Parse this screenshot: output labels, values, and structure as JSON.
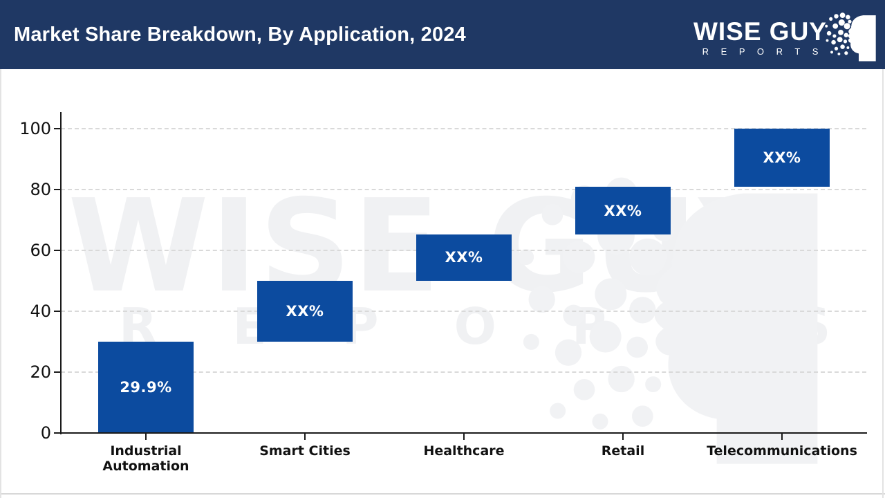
{
  "header": {
    "title": "Market Share Breakdown, By Application, 2024",
    "bg_color": "#1f3864",
    "logo": {
      "name": "WISE GUY",
      "tagline": "R E P O R T S"
    }
  },
  "watermark": {
    "line1": "WISE GUY",
    "line2": "R E P O R T S"
  },
  "chart_data": {
    "type": "bar",
    "subtype": "waterfall",
    "title": "Market Share Breakdown, By Application, 2024",
    "xlabel": "",
    "ylabel": "",
    "ylim": [
      0,
      100
    ],
    "yticks": [
      0,
      20,
      40,
      60,
      80,
      100
    ],
    "grid": {
      "axis": "y",
      "style": "dashed",
      "color": "#d9d9d9"
    },
    "legend": "none",
    "bar_color": "#0c4b9f",
    "bar_label_color": "#ffffff",
    "categories": [
      "Industrial\nAutomation",
      "Smart Cities",
      "Healthcare",
      "Retail",
      "Telecommunications"
    ],
    "segments": [
      {
        "category": "Industrial Automation",
        "start": 0,
        "end": 29.9,
        "label": "29.9%"
      },
      {
        "category": "Smart Cities",
        "start": 29.9,
        "end": 50.1,
        "label": "XX%"
      },
      {
        "category": "Healthcare",
        "start": 50.1,
        "end": 65.2,
        "label": "XX%"
      },
      {
        "category": "Retail",
        "start": 65.2,
        "end": 80.8,
        "label": "XX%"
      },
      {
        "category": "Telecommunications",
        "start": 80.8,
        "end": 100,
        "label": "XX%"
      }
    ]
  }
}
